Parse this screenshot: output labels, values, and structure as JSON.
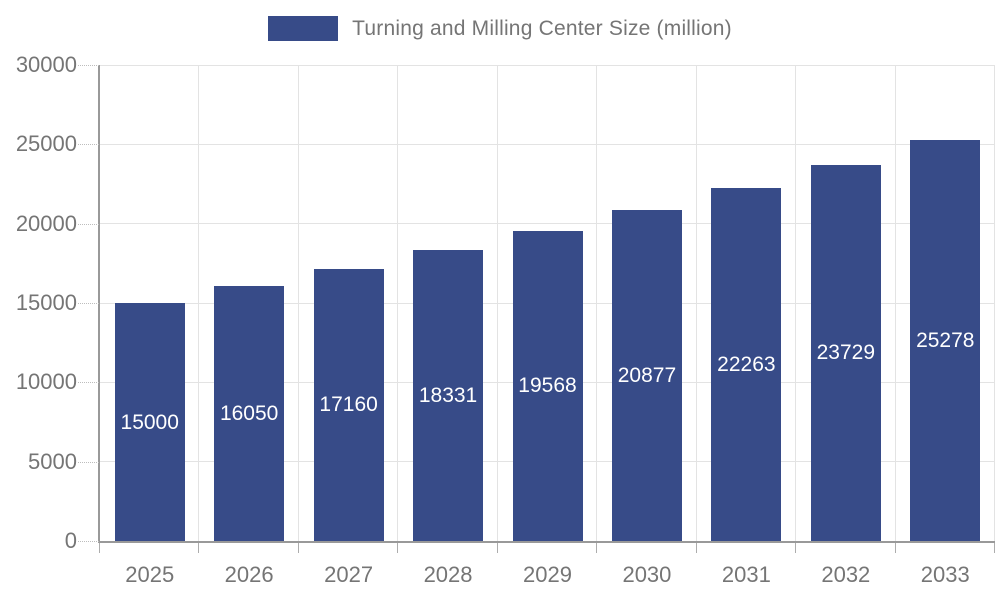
{
  "legend": {
    "items": [
      {
        "label": "Turning and Milling Center Size (million)"
      }
    ]
  },
  "colors": {
    "bar": "#374B88",
    "grid": "#E3E3E3",
    "axis": "#999999",
    "x_tick": "#ADADAD",
    "tick_text": "#757575",
    "value_text": "#FFFFFF",
    "background": "#FFFFFF"
  },
  "chart_data": {
    "type": "bar",
    "title": "Turning and Milling Center Size (million)",
    "categories": [
      "2025",
      "2026",
      "2027",
      "2028",
      "2029",
      "2030",
      "2031",
      "2032",
      "2033"
    ],
    "values": [
      15000,
      16050,
      17160,
      18331,
      19568,
      20877,
      22263,
      23729,
      25278
    ],
    "series": [
      {
        "name": "Turning and Milling Center Size (million)",
        "values": [
          15000,
          16050,
          17160,
          18331,
          19568,
          20877,
          22263,
          23729,
          25278
        ]
      }
    ],
    "xlabel": "",
    "ylabel": "",
    "ylim": [
      0,
      30000
    ],
    "yticks": [
      0,
      5000,
      10000,
      15000,
      20000,
      25000,
      30000
    ],
    "grid": true,
    "legend_position": "top",
    "value_label_position": "inside-center"
  }
}
